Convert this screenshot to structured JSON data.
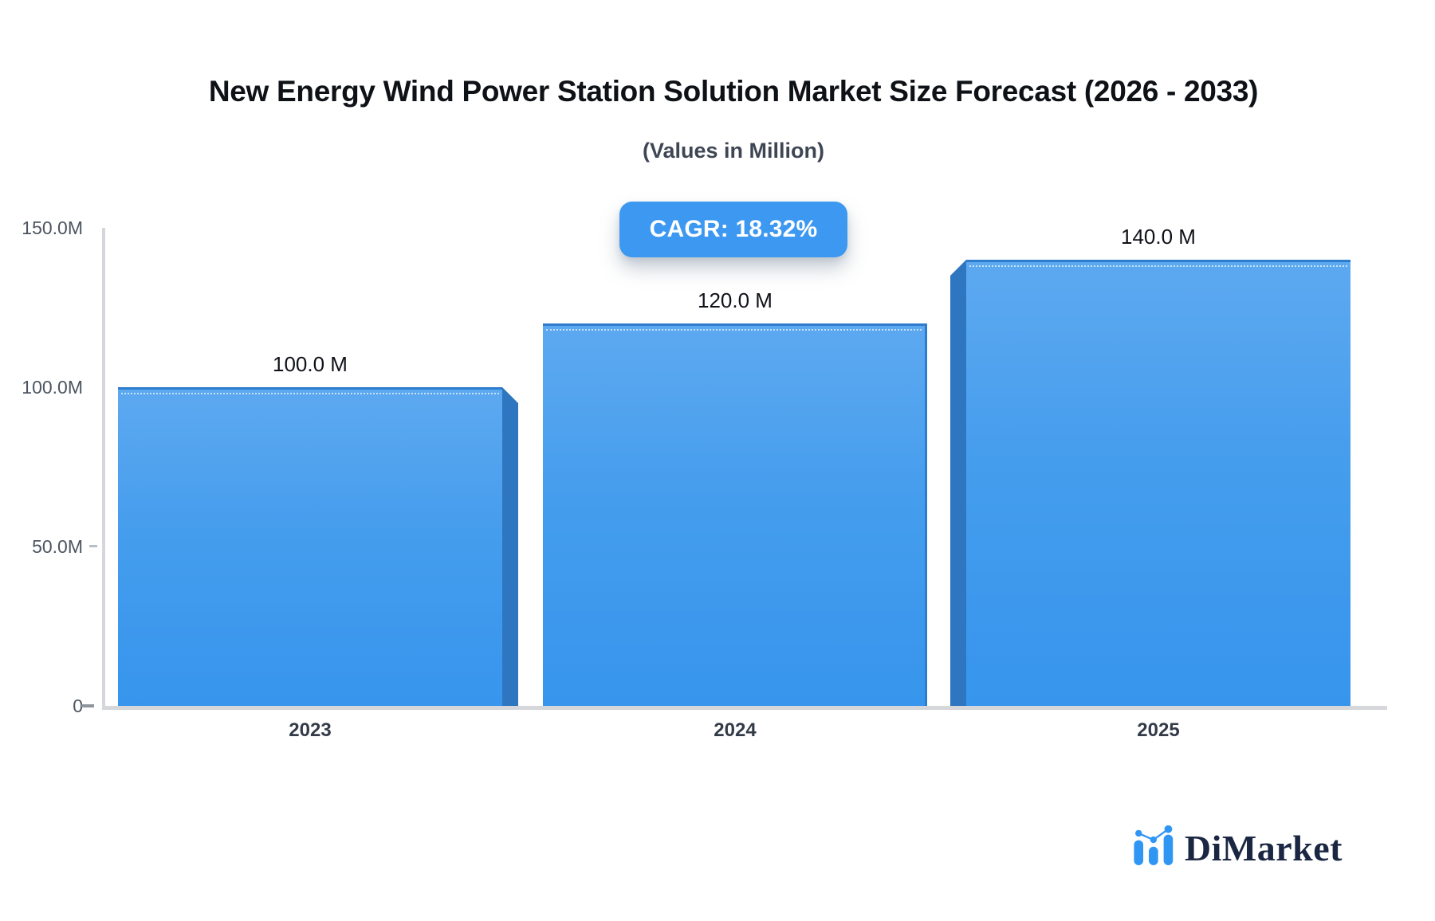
{
  "header": {
    "title": "New Energy Wind Power Station Solution Market Size Forecast (2026 - 2033)",
    "subtitle": "(Values in Million)"
  },
  "badge": {
    "label": "CAGR: 18.32%"
  },
  "chart_data": {
    "type": "bar",
    "title": "New Energy Wind Power Station Solution Market Size Forecast (2026 - 2033)",
    "subtitle": "(Values in Million)",
    "unit": "Million",
    "cagr": "18.32%",
    "categories": [
      "2023",
      "2024",
      "2025"
    ],
    "values": [
      100.0,
      120.0,
      140.0
    ],
    "value_labels": [
      "100.0 M",
      "120.0 M",
      "140.0 M"
    ],
    "ylim": [
      0,
      150
    ],
    "yticks": [
      {
        "value": 0,
        "label": "0"
      },
      {
        "value": 50,
        "label": "50.0M"
      },
      {
        "value": 100,
        "label": "100.0M"
      },
      {
        "value": 150,
        "label": "150.0M"
      }
    ],
    "grid": false,
    "legend": "none",
    "bar_extrude": [
      "right",
      "none",
      "left"
    ]
  },
  "branding": {
    "logo_text": "DiMarket",
    "logo_icon": "bar-chart-icon"
  },
  "colors": {
    "badge_bg": "#3c98f0",
    "bar_gradient_top": "#5da9f0",
    "bar_gradient_mid": "#459ded",
    "bar_gradient_bottom": "#3795ed",
    "bar_top_edge": "#2e7ccd",
    "bar_side": "#2e76bf",
    "axis": "#d5d7db",
    "tick_zero": "#8f959d",
    "tick_minor": "#b9bfc6",
    "logo_blue": "#2f96f4",
    "logo_text_color": "#1b2742"
  }
}
